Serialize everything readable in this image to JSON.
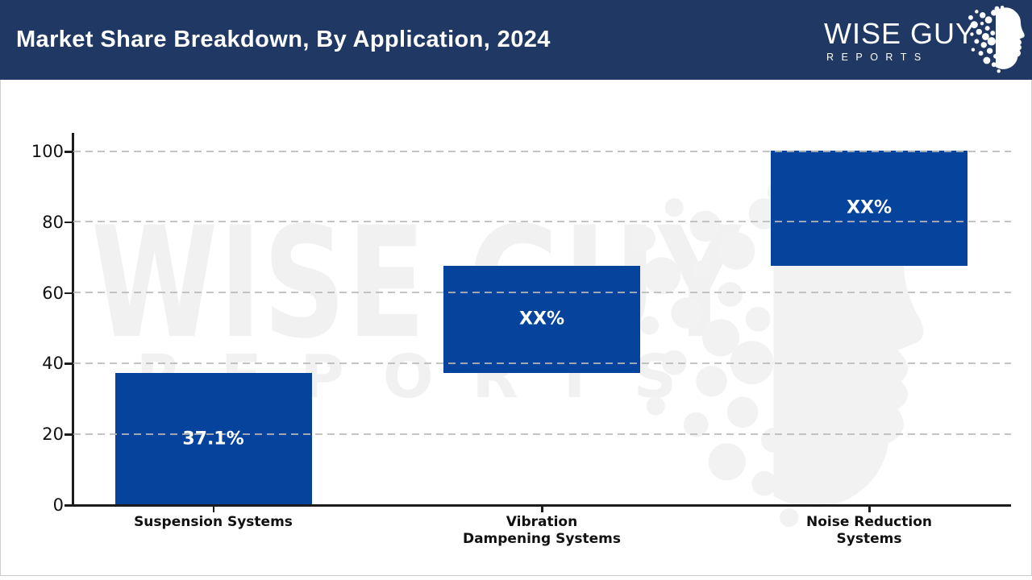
{
  "header": {
    "title": "Market Share Breakdown, By Application, 2024",
    "bg_color": "#1f3864",
    "logo": {
      "line1": "WISE GUY",
      "line2": "REPORTS"
    }
  },
  "watermark": {
    "line1": "WISE GUY",
    "line2": "REPORTS"
  },
  "chart_data": {
    "type": "bar",
    "subtype": "waterfall",
    "title": "Market Share Breakdown, By Application, 2024",
    "categories": [
      "Suspension Systems",
      "Vibration Dampening Systems",
      "Noise Reduction Systems"
    ],
    "categories_lines": [
      [
        "Suspension Systems"
      ],
      [
        "Vibration",
        "Dampening Systems"
      ],
      [
        "Noise Reduction",
        "Systems"
      ]
    ],
    "segments": [
      {
        "category": "Suspension Systems",
        "start": 0,
        "end": 37.1,
        "label": "37.1%"
      },
      {
        "category": "Vibration Dampening Systems",
        "start": 37.1,
        "end": 67.5,
        "label": "XX%"
      },
      {
        "category": "Noise Reduction Systems",
        "start": 67.5,
        "end": 100,
        "label": "XX%"
      }
    ],
    "ylim": [
      0,
      100
    ],
    "yticks": [
      0,
      20,
      40,
      60,
      80,
      100
    ],
    "grid": "horizontal-dashed",
    "legend": "none",
    "bar_color": "#05439c",
    "bar_label_color": "#ffffff",
    "axis_color": "#1c1c1c"
  }
}
